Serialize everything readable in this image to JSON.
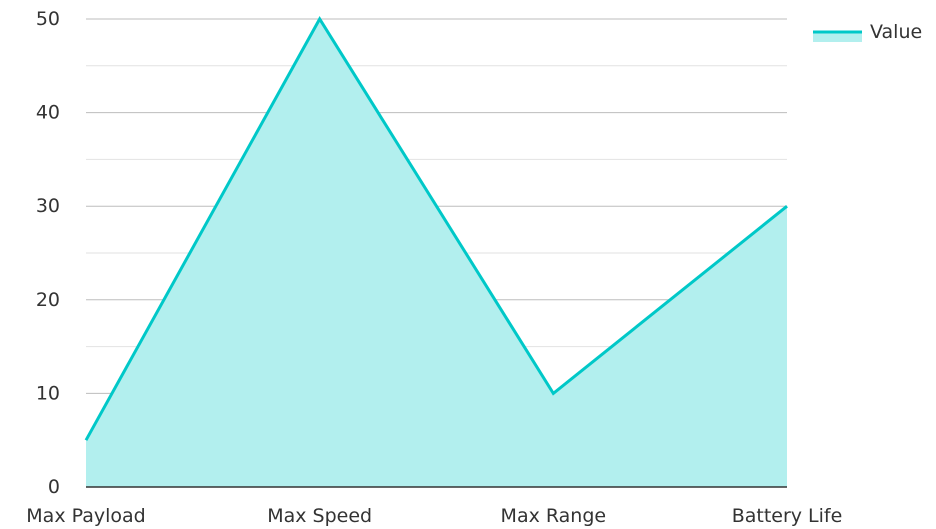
{
  "chart_data": {
    "type": "area",
    "categories": [
      "Max Payload",
      "Max Speed",
      "Max Range",
      "Battery Life"
    ],
    "series": [
      {
        "name": "Value",
        "values": [
          5,
          50,
          10,
          30
        ],
        "color": "#00c8c8",
        "fill": "#b2efee"
      }
    ],
    "ylim": [
      0,
      50
    ],
    "yticks": [
      0,
      10,
      20,
      30,
      40,
      50
    ],
    "grid": true,
    "legend": "top-right"
  }
}
